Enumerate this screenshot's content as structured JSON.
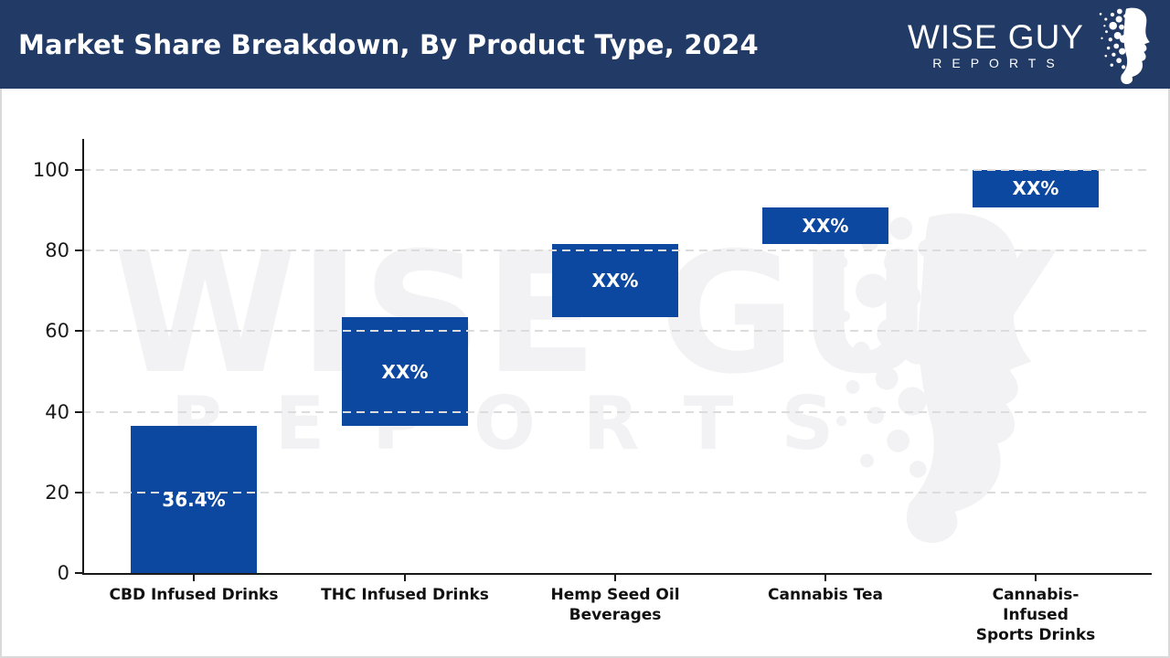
{
  "header": {
    "title": "Market Share Breakdown, By Product Type, 2024",
    "logo": {
      "line1": "WISE GUY",
      "line2": "REPORTS"
    }
  },
  "watermark": {
    "line1": "WISE GUY",
    "line2": "REPORTS"
  },
  "colors": {
    "header_bg": "#213A66",
    "bar": "#0C47A0",
    "gridline": "#dcdcdc",
    "axis": "#1a1a1a",
    "watermark": "#f2f2f4",
    "card_border": "#d9d9d9",
    "bar_label": "#ffffff"
  },
  "chart_data": {
    "type": "bar",
    "subtype": "waterfall",
    "title": "Market Share Breakdown, By Product Type, 2024",
    "xlabel": "",
    "ylabel": "",
    "categories": [
      "CBD Infused Drinks",
      "THC Infused Drinks",
      "Hemp Seed Oil\nBeverages",
      "Cannabis Tea",
      "Cannabis-Infused\nSports Drinks"
    ],
    "series": [
      {
        "name": "Market Share (%)",
        "segments": [
          {
            "start": 0,
            "end": 36.4,
            "label": "36.4%"
          },
          {
            "start": 36.4,
            "end": 63.5,
            "label": "XX%"
          },
          {
            "start": 63.5,
            "end": 81.6,
            "label": "XX%"
          },
          {
            "start": 81.6,
            "end": 90.8,
            "label": "XX%"
          },
          {
            "start": 90.8,
            "end": 100.0,
            "label": "XX%"
          }
        ]
      }
    ],
    "yticks": [
      0,
      20,
      40,
      60,
      80,
      100
    ],
    "ylim": [
      0,
      107.5
    ],
    "grid": "dashed-horizontal",
    "legend": "none"
  }
}
